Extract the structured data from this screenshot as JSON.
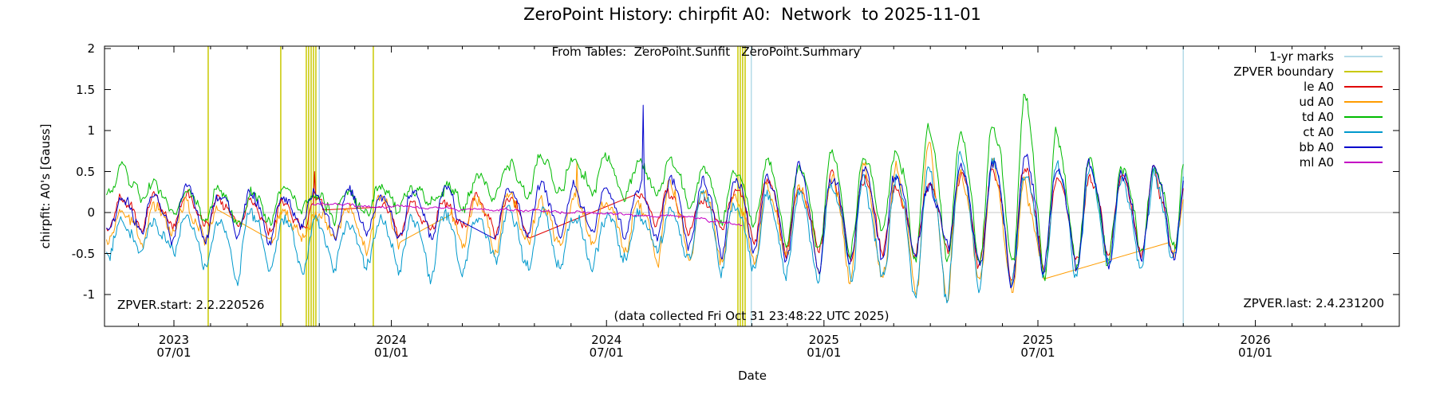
{
  "title": "ZeroPoint History: chirpfit A0:  Network  to 2025-11-01",
  "annotations": {
    "from_tables": "From Tables:  ZeroPoint.Sunfit   ZeroPoint.Summary",
    "zpver_start": "ZPVER.start: 2.2.220526",
    "data_collected": "(data collected Fri Oct 31 23:48:22 UTC 2025)",
    "zpver_last": "ZPVER.last: 2.4.231200"
  },
  "chart_data": {
    "type": "line",
    "title": "ZeroPoint History: chirpfit A0:  Network  to 2025-11-01",
    "xlabel": "Date",
    "ylabel": "chirpfit: A0's [Gauss]",
    "x_start_date": "2023-05-03",
    "x_end_date": "2026-05-03",
    "data_end_date": "2025-11-01",
    "ylim": [
      -1.39,
      2.03
    ],
    "y_ticks": [
      "2",
      "1.5",
      "1",
      "0.5",
      "0",
      "-0.5",
      "-1"
    ],
    "y_tick_values": [
      2,
      1.5,
      1,
      0.5,
      0,
      -0.5,
      -1
    ],
    "x_ticks": [
      {
        "day": 59,
        "line1": "2023",
        "line2": "07/01"
      },
      {
        "day": 243,
        "line1": "2024",
        "line2": "01/01"
      },
      {
        "day": 425,
        "line1": "2024",
        "line2": "07/01"
      },
      {
        "day": 609,
        "line1": "2025",
        "line2": "01/01"
      },
      {
        "day": 790,
        "line1": "2025",
        "line2": "07/01"
      },
      {
        "day": 974,
        "line1": "2026",
        "line2": "01/01"
      }
    ],
    "grid": false,
    "legend_position": "top-right-inside",
    "zero_line": {
      "value": 0,
      "color": "#c8c8c8"
    },
    "one_year_marks": {
      "color": "#b4dbe8",
      "dates": [
        "2023-11-01",
        "2024-11-01",
        "2025-11-01"
      ],
      "days": [
        182,
        547.5,
        913
      ]
    },
    "zpver_boundaries": {
      "color": "#c9c900",
      "days": [
        88,
        149.4,
        171,
        173,
        175.1,
        177.1,
        179.1,
        227.7,
        536.2,
        538.2,
        540.2,
        542.3
      ]
    },
    "oscillation": {
      "period_days": 27.3,
      "phase_days": 16.4,
      "note": "all A0 series oscillate in phase with ~27-day solar rotation"
    },
    "series": [
      {
        "name": "le A0",
        "color": "#e00000",
        "seed": 7,
        "noise": 0.1,
        "osc_weight": 1,
        "envelope": [
          [
            2,
            0.0,
            0.22
          ],
          [
            120,
            -0.02,
            0.2
          ],
          [
            243,
            -0.05,
            0.18
          ],
          [
            425,
            0.0,
            0.3
          ],
          [
            548,
            0.05,
            0.4
          ],
          [
            609,
            0.0,
            0.55
          ],
          [
            700,
            -0.05,
            0.6
          ],
          [
            790,
            0.0,
            0.65
          ],
          [
            913,
            0.0,
            0.6
          ]
        ],
        "gaps": [
          [
            185,
            235
          ],
          [
            360,
            449
          ]
        ],
        "events": [
          [
            178,
            0.5
          ]
        ]
      },
      {
        "name": "ud A0",
        "color": "#ff9c00",
        "seed": 13,
        "noise": 0.12,
        "osc_weight": 1,
        "envelope": [
          [
            2,
            -0.08,
            0.25
          ],
          [
            150,
            -0.15,
            0.22
          ],
          [
            243,
            -0.12,
            0.3
          ],
          [
            425,
            -0.1,
            0.35
          ],
          [
            548,
            -0.1,
            0.5
          ],
          [
            609,
            -0.1,
            0.7
          ],
          [
            700,
            -0.12,
            0.85
          ],
          [
            760,
            -0.15,
            0.7
          ],
          [
            790,
            -0.25,
            0.55
          ],
          [
            913,
            -0.1,
            0.55
          ]
        ],
        "gaps": [
          [
            97,
            140
          ],
          [
            252,
            293
          ],
          [
            795,
            900
          ]
        ],
        "events": [
          [
            400,
            0.62
          ]
        ]
      },
      {
        "name": "td A0",
        "color": "#00bb00",
        "seed": 5,
        "noise": 0.11,
        "osc_weight": 1,
        "envelope": [
          [
            2,
            0.4,
            0.2
          ],
          [
            100,
            0.08,
            0.22
          ],
          [
            200,
            0.15,
            0.2
          ],
          [
            300,
            0.3,
            0.2
          ],
          [
            364,
            0.45,
            0.3
          ],
          [
            425,
            0.45,
            0.2
          ],
          [
            500,
            0.32,
            0.3
          ],
          [
            560,
            0.25,
            0.4
          ],
          [
            609,
            0.15,
            0.5
          ],
          [
            660,
            0.2,
            0.6
          ],
          [
            700,
            0.25,
            0.8
          ],
          [
            745,
            0.3,
            1.0
          ],
          [
            774,
            0.4,
            1.5
          ],
          [
            800,
            0.2,
            1.0
          ],
          [
            830,
            0.0,
            0.8
          ],
          [
            870,
            0.1,
            0.6
          ],
          [
            913,
            0.2,
            0.5
          ]
        ],
        "gaps": [],
        "events": []
      },
      {
        "name": "ct A0",
        "color": "#0099cc",
        "seed": 29,
        "noise": 0.12,
        "osc_weight": 1,
        "envelope": [
          [
            2,
            -0.22,
            0.25
          ],
          [
            100,
            -0.35,
            0.3
          ],
          [
            243,
            -0.35,
            0.35
          ],
          [
            425,
            -0.3,
            0.38
          ],
          [
            548,
            -0.22,
            0.5
          ],
          [
            609,
            -0.18,
            0.6
          ],
          [
            700,
            -0.15,
            0.75
          ],
          [
            790,
            -0.1,
            0.8
          ],
          [
            913,
            -0.1,
            0.7
          ]
        ],
        "gaps": [],
        "events": []
      },
      {
        "name": "bb A0",
        "color": "#0000cc",
        "seed": 42,
        "noise": 0.1,
        "osc_weight": 1,
        "envelope": [
          [
            2,
            0.02,
            0.28
          ],
          [
            243,
            0.0,
            0.25
          ],
          [
            425,
            0.05,
            0.32
          ],
          [
            548,
            0.05,
            0.45
          ],
          [
            609,
            0.0,
            0.6
          ],
          [
            700,
            -0.02,
            0.75
          ],
          [
            790,
            0.0,
            0.85
          ],
          [
            913,
            0.0,
            0.75
          ]
        ],
        "gaps": [
          [
            298,
            330
          ]
        ],
        "events": [
          [
            455,
            0.4
          ],
          [
            456,
            1.31
          ],
          [
            457,
            0.35
          ]
        ]
      },
      {
        "name": "ml A0",
        "color": "#c400c4",
        "seed": 3,
        "noise": 0.02,
        "osc_weight": 0.1,
        "range": [
          176,
          540
        ],
        "envelope": [
          [
            176,
            0.1,
            0.02
          ],
          [
            370,
            0.02,
            0.02
          ],
          [
            480,
            -0.04,
            0.02
          ],
          [
            540,
            -0.15,
            0.02
          ]
        ],
        "gaps": [],
        "events": []
      }
    ],
    "legend": [
      {
        "label": "1-yr marks",
        "color": "#b4dbe8"
      },
      {
        "label": "ZPVER boundary",
        "color": "#c9c900"
      },
      {
        "label": "le A0",
        "color": "#e00000"
      },
      {
        "label": "ud A0",
        "color": "#ff9c00"
      },
      {
        "label": "td A0",
        "color": "#00bb00"
      },
      {
        "label": "ct A0",
        "color": "#0099cc"
      },
      {
        "label": "bb A0",
        "color": "#0000cc"
      },
      {
        "label": "ml A0",
        "color": "#c400c4"
      }
    ]
  }
}
